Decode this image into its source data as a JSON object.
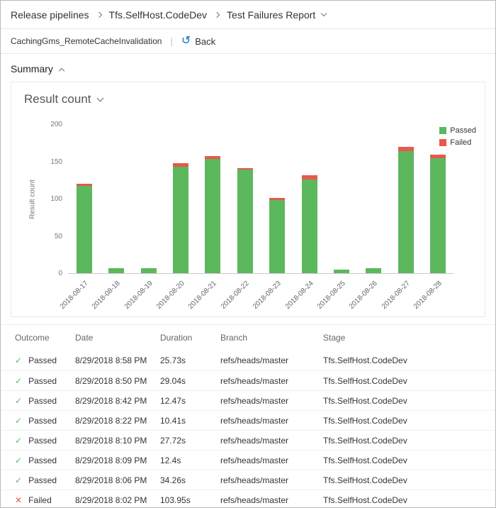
{
  "breadcrumb": {
    "items": [
      "Release pipelines",
      "Tfs.SelfHost.CodeDev",
      "Test Failures Report"
    ]
  },
  "subheader": {
    "test_name": "CachingGms_RemoteCacheInvalidation",
    "separator": "|",
    "back_label": "Back"
  },
  "icons": {
    "back_icon": "↺",
    "passed_icon": "✓",
    "failed_icon": "✕"
  },
  "summary": {
    "title": "Summary"
  },
  "chart": {
    "metric_label": "Result count"
  },
  "chart_data": {
    "type": "bar",
    "stacked": true,
    "title": "Result count",
    "xlabel": "",
    "ylabel": "Result count",
    "ylim": [
      0,
      200
    ],
    "yticks": [
      0,
      50,
      100,
      150,
      200
    ],
    "grid": false,
    "legend_position": "right",
    "categories": [
      "2018-08-17",
      "2018-08-18",
      "2018-08-19",
      "2018-08-20",
      "2018-08-21",
      "2018-08-22",
      "2018-08-23",
      "2018-08-24",
      "2018-08-25",
      "2018-08-26",
      "2018-08-27",
      "2018-08-28"
    ],
    "series": [
      {
        "name": "Passed",
        "color": "#5cb85c",
        "values": [
          117,
          7,
          7,
          143,
          153,
          139,
          98,
          126,
          5,
          7,
          164,
          154
        ]
      },
      {
        "name": "Failed",
        "color": "#e8584c",
        "values": [
          3,
          0,
          0,
          5,
          4,
          2,
          3,
          5,
          0,
          0,
          6,
          5
        ]
      }
    ]
  },
  "table": {
    "columns": [
      "Outcome",
      "Date",
      "Duration",
      "Branch",
      "Stage"
    ],
    "rows": [
      {
        "outcome": "Passed",
        "date": "8/29/2018 8:58 PM",
        "duration": "25.73s",
        "branch": "refs/heads/master",
        "stage": "Tfs.SelfHost.CodeDev"
      },
      {
        "outcome": "Passed",
        "date": "8/29/2018 8:50 PM",
        "duration": "29.04s",
        "branch": "refs/heads/master",
        "stage": "Tfs.SelfHost.CodeDev"
      },
      {
        "outcome": "Passed",
        "date": "8/29/2018 8:42 PM",
        "duration": "12.47s",
        "branch": "refs/heads/master",
        "stage": "Tfs.SelfHost.CodeDev"
      },
      {
        "outcome": "Passed",
        "date": "8/29/2018 8:22 PM",
        "duration": "10.41s",
        "branch": "refs/heads/master",
        "stage": "Tfs.SelfHost.CodeDev"
      },
      {
        "outcome": "Passed",
        "date": "8/29/2018 8:10 PM",
        "duration": "27.72s",
        "branch": "refs/heads/master",
        "stage": "Tfs.SelfHost.CodeDev"
      },
      {
        "outcome": "Passed",
        "date": "8/29/2018 8:09 PM",
        "duration": "12.4s",
        "branch": "refs/heads/master",
        "stage": "Tfs.SelfHost.CodeDev"
      },
      {
        "outcome": "Passed",
        "date": "8/29/2018 8:06 PM",
        "duration": "34.26s",
        "branch": "refs/heads/master",
        "stage": "Tfs.SelfHost.CodeDev"
      },
      {
        "outcome": "Failed",
        "date": "8/29/2018 8:02 PM",
        "duration": "103.95s",
        "branch": "refs/heads/master",
        "stage": "Tfs.SelfHost.CodeDev"
      }
    ]
  },
  "colors": {
    "passed": "#5cb85c",
    "failed": "#e8584c",
    "accent": "#0072c6"
  }
}
